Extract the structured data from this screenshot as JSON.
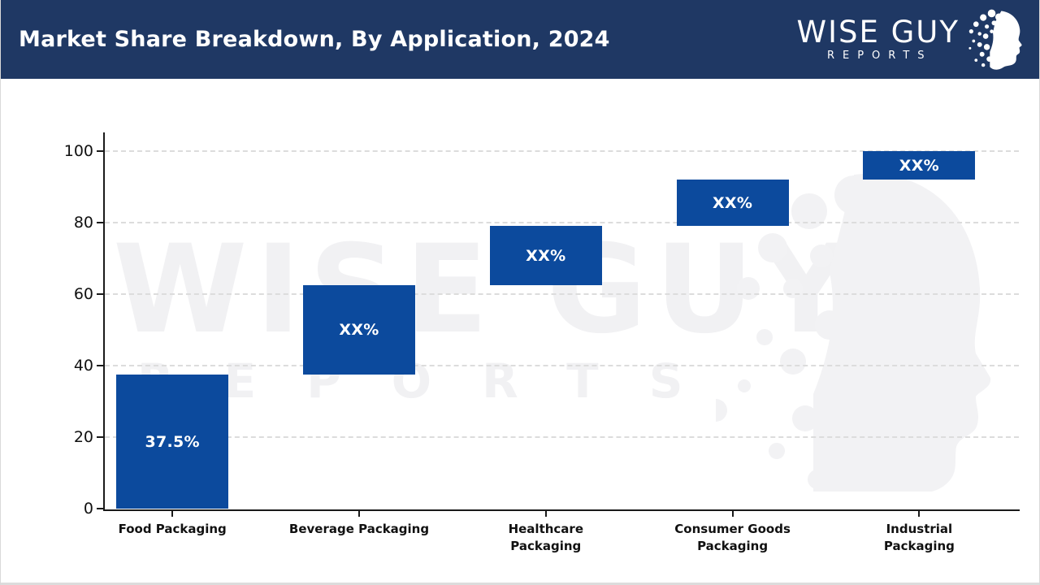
{
  "header": {
    "title": "Market Share Breakdown, By Application, 2024",
    "bg_color": "#1f3864",
    "logo": {
      "line1": "WISE GUY",
      "line2": "REPORTS"
    }
  },
  "watermark": {
    "line1": "WISE GUY",
    "line2": "REPORTS"
  },
  "chart_data": {
    "type": "bar",
    "subtype": "waterfall",
    "title": "Market Share Breakdown, By Application, 2024",
    "categories": [
      "Food Packaging",
      "Beverage Packaging",
      "Healthcare\nPackaging",
      "Consumer Goods\nPackaging",
      "Industrial\nPackaging"
    ],
    "segments": [
      {
        "category": "Food Packaging",
        "label": "37.5%",
        "start": 0,
        "end": 37.5,
        "value": 37.5
      },
      {
        "category": "Beverage Packaging",
        "label": "XX%",
        "start": 37.5,
        "end": 62.5,
        "value": 25
      },
      {
        "category": "Healthcare Packaging",
        "label": "XX%",
        "start": 62.5,
        "end": 79,
        "value": 16.5
      },
      {
        "category": "Consumer Goods Packaging",
        "label": "XX%",
        "start": 79,
        "end": 92,
        "value": 13
      },
      {
        "category": "Industrial Packaging",
        "label": "XX%",
        "start": 92,
        "end": 100,
        "value": 8
      }
    ],
    "xlabel": "",
    "ylabel": "",
    "ylim": [
      0,
      105
    ],
    "yticks": [
      0,
      20,
      40,
      60,
      80,
      100
    ],
    "grid": "horizontal-dashed",
    "legend": "none",
    "bar_color": "#0c4a9d",
    "bar_label_color": "#ffffff"
  }
}
